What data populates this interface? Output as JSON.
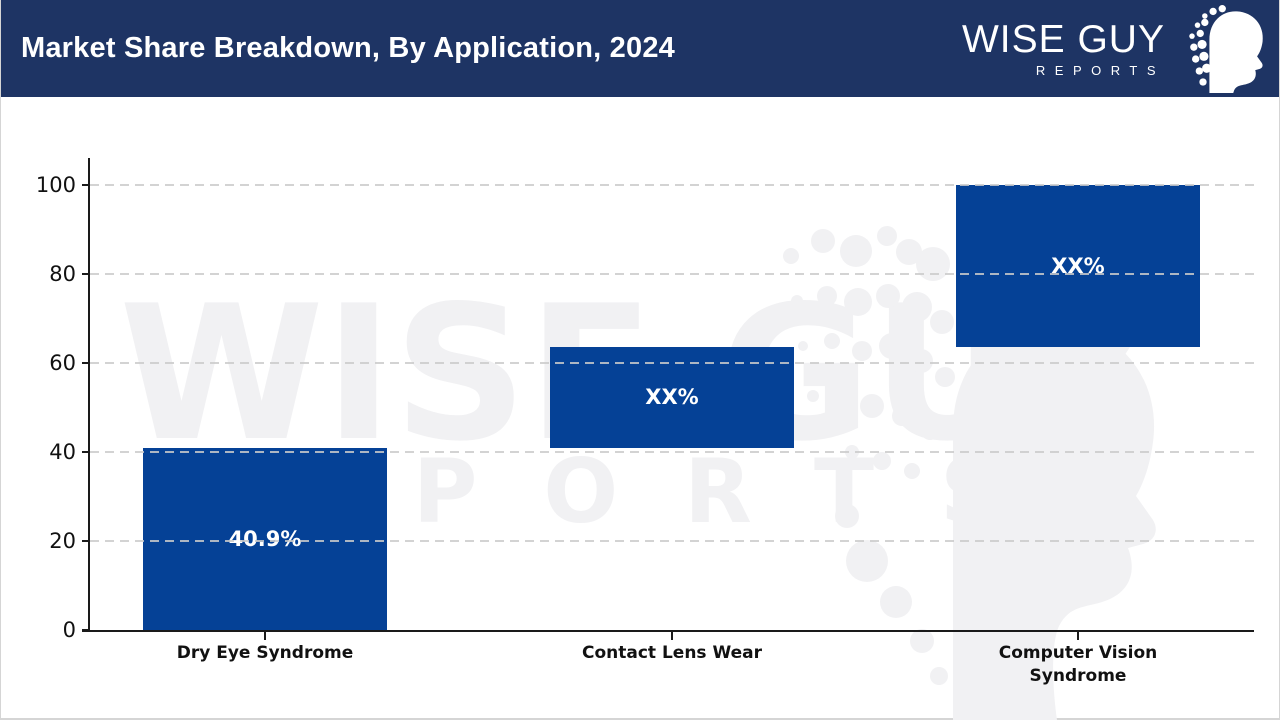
{
  "header": {
    "title": "Market Share Breakdown, By Application, 2024",
    "logo": {
      "line1": "WISE GUY",
      "line2": "REPORTS"
    }
  },
  "watermark": {
    "line1": "WISE GUY",
    "line2": "REPORTS"
  },
  "colors": {
    "header_bg": "#1e3464",
    "bar": "#054196",
    "grid": "#cbcbcb",
    "axis": "#1a1a1a",
    "bar_label_text": "#ffffff",
    "tick_text": "#111111",
    "watermark": "#f1f1f3",
    "page_bg": "#ffffff"
  },
  "chart_data": {
    "type": "bar",
    "variant": "waterfall-floating",
    "title": "Market Share Breakdown, By Application, 2024",
    "categories": [
      "Dry Eye Syndrome",
      "Contact Lens Wear",
      "Computer Vision Syndrome"
    ],
    "segments": [
      {
        "category": "Dry Eye Syndrome",
        "start": 0,
        "end": 40.9,
        "value_label": "40.9%"
      },
      {
        "category": "Contact Lens Wear",
        "start": 40.9,
        "end": 63.6,
        "value_label": "XX%"
      },
      {
        "category": "Computer Vision Syndrome",
        "start": 63.6,
        "end": 100,
        "value_label": "XX%"
      }
    ],
    "xlabel": "",
    "ylabel": "",
    "ylim": [
      0,
      100
    ],
    "yticks": [
      0,
      20,
      40,
      60,
      80,
      100
    ],
    "grid": "dashed-horizontal",
    "legend": "none"
  }
}
